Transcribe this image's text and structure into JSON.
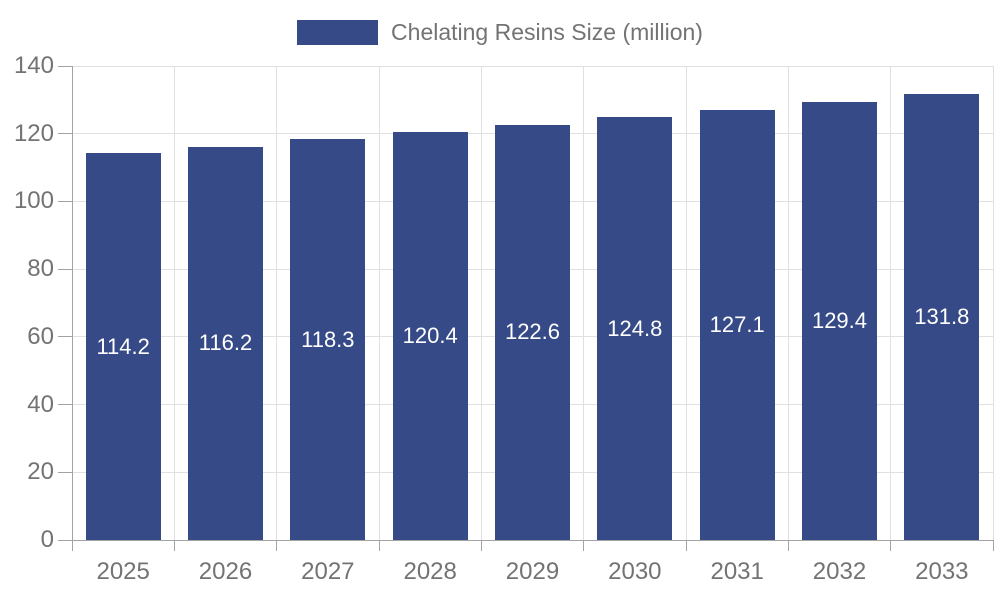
{
  "legend": {
    "label": "Chelating Resins Size (million)"
  },
  "chart_data": {
    "type": "bar",
    "title": "Chelating Resins Size (million)",
    "series_name": "Chelating Resins Size (million)",
    "categories": [
      "2025",
      "2026",
      "2027",
      "2028",
      "2029",
      "2030",
      "2031",
      "2032",
      "2033"
    ],
    "values": [
      114.2,
      116.2,
      118.3,
      120.4,
      122.6,
      124.8,
      127.1,
      129.4,
      131.8
    ],
    "value_labels": [
      "114.2",
      "116.2",
      "118.3",
      "120.4",
      "122.6",
      "124.8",
      "127.1",
      "129.4",
      "131.8"
    ],
    "ytick_labels": [
      "0",
      "20",
      "40",
      "60",
      "80",
      "100",
      "120",
      "140"
    ],
    "ylim": [
      0,
      140
    ],
    "ytick_step": 20,
    "xlabel": "",
    "ylabel": "",
    "grid": true,
    "legend_position": "top",
    "colors": {
      "bar": "#364A87",
      "grid": "#E0E0E0",
      "axis": "#A3A3A3",
      "axis_text": "#737373",
      "value_text": "#FFFFFF"
    }
  }
}
